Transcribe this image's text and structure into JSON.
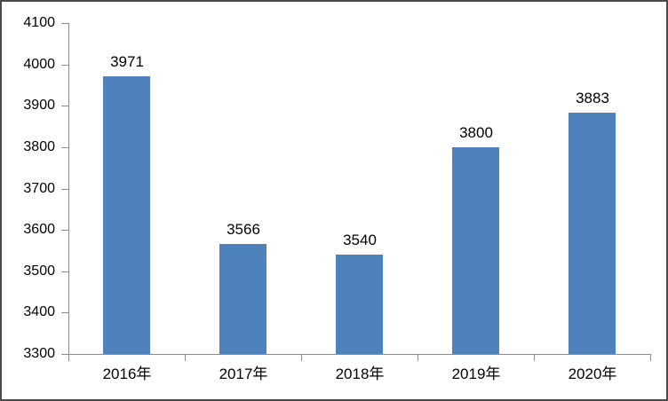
{
  "chart_data": {
    "type": "bar",
    "title": "",
    "xlabel": "",
    "ylabel": "",
    "categories": [
      "2016年",
      "2017年",
      "2018年",
      "2019年",
      "2020年"
    ],
    "values": [
      3971,
      3566,
      3540,
      3800,
      3883
    ],
    "data_labels": [
      "3971",
      "3566",
      "3540",
      "3800",
      "3883"
    ],
    "ylim": [
      3300,
      4100
    ],
    "ytick_step": 100,
    "ytick_labels": [
      "3300",
      "3400",
      "3500",
      "3600",
      "3700",
      "3800",
      "3900",
      "4000",
      "4100"
    ],
    "grid": false,
    "legend": false,
    "colors": {
      "bar": "#4f81bd",
      "axis": "#8c8c8c",
      "text": "#000000",
      "background": "#ffffff",
      "frame_border": "#4a4a4a"
    }
  }
}
